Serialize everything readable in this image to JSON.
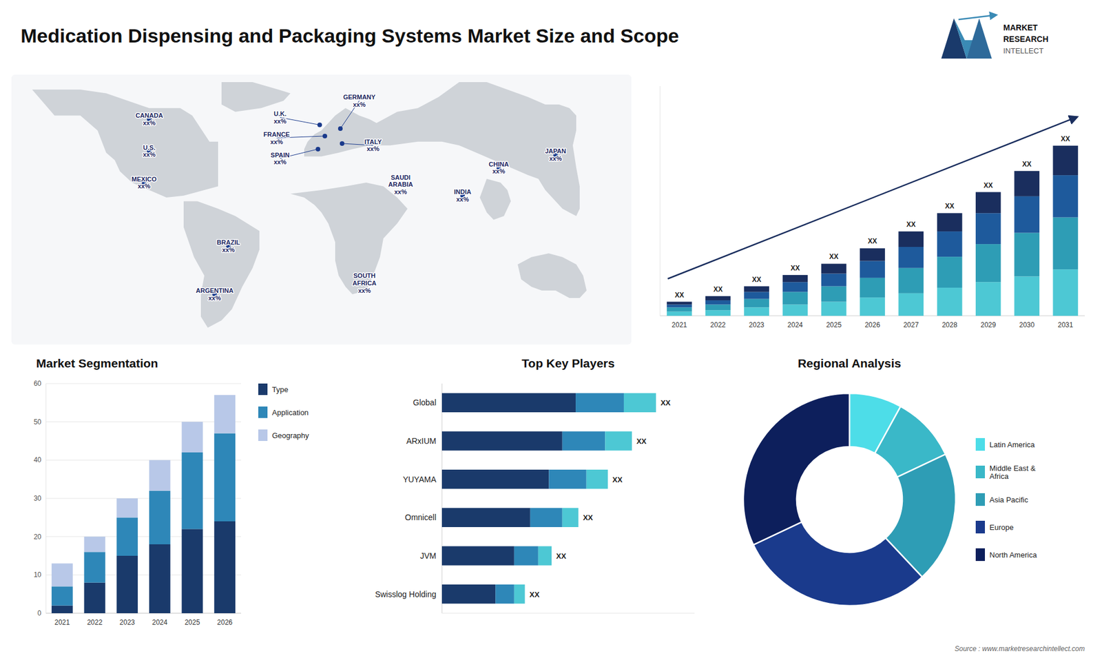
{
  "chart_data": [
    {
      "type": "map",
      "title": "Medication Dispensing and Packaging Systems Market Size and Scope",
      "annotations": [
        "U.S.\nxx%",
        "CANADA\nxx%",
        "MEXICO\nxx%",
        "BRAZIL\nxx%",
        "ARGENTINA\nxx%",
        "U.K.\nxx%",
        "FRANCE\nxx%",
        "SPAIN\nxx%",
        "GERMANY\nxx%",
        "ITALY\nxx%",
        "SAUDI\nARABIA\nxx%",
        "SOUTH\nAFRICA\nxx%",
        "INDIA\nxx%",
        "CHINA\nxx%",
        "JAPAN\nxx%",
        "MARKET",
        "RESEARCH",
        "INTELLECT",
        "Source : www.marketresearchintellect.com"
      ]
    },
    {
      "type": "bar",
      "stacked": true,
      "categories": [
        "2021",
        "2022",
        "2023",
        "2024",
        "2025",
        "2026",
        "2027",
        "2028",
        "2029",
        "2030",
        "2031"
      ],
      "series": [
        {
          "color": "#4dc8d4",
          "values": [
            3,
            4,
            6,
            8,
            10,
            13,
            16,
            20,
            24,
            28,
            33
          ]
        },
        {
          "color": "#2e9db5",
          "values": [
            3,
            4,
            6,
            9,
            11,
            14,
            18,
            22,
            27,
            31,
            37
          ]
        },
        {
          "color": "#1e5a9c",
          "values": [
            2,
            3,
            5,
            7,
            9,
            12,
            15,
            18,
            22,
            26,
            30
          ]
        },
        {
          "color": "#1a2e5e",
          "values": [
            2,
            3,
            4,
            5,
            7,
            9,
            11,
            13,
            15,
            18,
            21
          ]
        }
      ],
      "ylim": [
        0,
        163.35
      ],
      "tick_labels": "x",
      "grid": false,
      "annotations": [
        "XX",
        "XX",
        "XX",
        "XX",
        "XX",
        "XX",
        "XX",
        "XX",
        "XX",
        "XX",
        "XX"
      ]
    },
    {
      "type": "bar",
      "title": "Market Segmentation",
      "stacked": true,
      "categories": [
        "2021",
        "2022",
        "2023",
        "2024",
        "2025",
        "2026"
      ],
      "series": [
        {
          "name": "Type",
          "color": "#1a3a6b",
          "values": [
            2,
            8,
            15,
            18,
            22,
            24
          ]
        },
        {
          "name": "Application",
          "color": "#2e87b8",
          "values": [
            5,
            8,
            10,
            14,
            20,
            23
          ]
        },
        {
          "name": "Geography",
          "color": "#b8c8e8",
          "values": [
            6,
            4,
            5,
            8,
            8,
            10
          ]
        }
      ],
      "ylim": [
        0,
        60
      ],
      "yticks": [
        0,
        10,
        20,
        30,
        40,
        50,
        60
      ],
      "grid": true,
      "legend": "right"
    },
    {
      "type": "bar",
      "title": "Top Key Players",
      "orientation": "horizontal",
      "stacked": true,
      "categories": [
        "Global",
        "ARxIUM",
        "YUYAMA",
        "Omnicell",
        "JVM",
        "Swisslog Holding"
      ],
      "series": [
        {
          "color": "#1a3a6b",
          "values": [
            50,
            45,
            40,
            33,
            27,
            20
          ]
        },
        {
          "color": "#2e87b8",
          "values": [
            18,
            16,
            14,
            12,
            9,
            7
          ]
        },
        {
          "color": "#4dc8d4",
          "values": [
            12,
            10,
            8,
            6,
            5,
            4
          ]
        }
      ],
      "xlim": [
        0,
        94.4
      ],
      "tick_labels": "y",
      "grid": false,
      "annotations": [
        "XX",
        "XX",
        "XX",
        "XX",
        "XX",
        "XX"
      ]
    },
    {
      "type": "pie",
      "title": "Regional Analysis",
      "categories": [
        "Latin America",
        "Middle East &\nAfrica",
        "Asia Pacific",
        "Europe",
        "North America"
      ],
      "values": [
        8,
        10,
        20,
        30,
        32
      ],
      "colors": [
        "#4ddde8",
        "#3ab8c8",
        "#2e9db5",
        "#1a3a8c",
        "#0d1f5c"
      ],
      "legend": "right"
    }
  ]
}
